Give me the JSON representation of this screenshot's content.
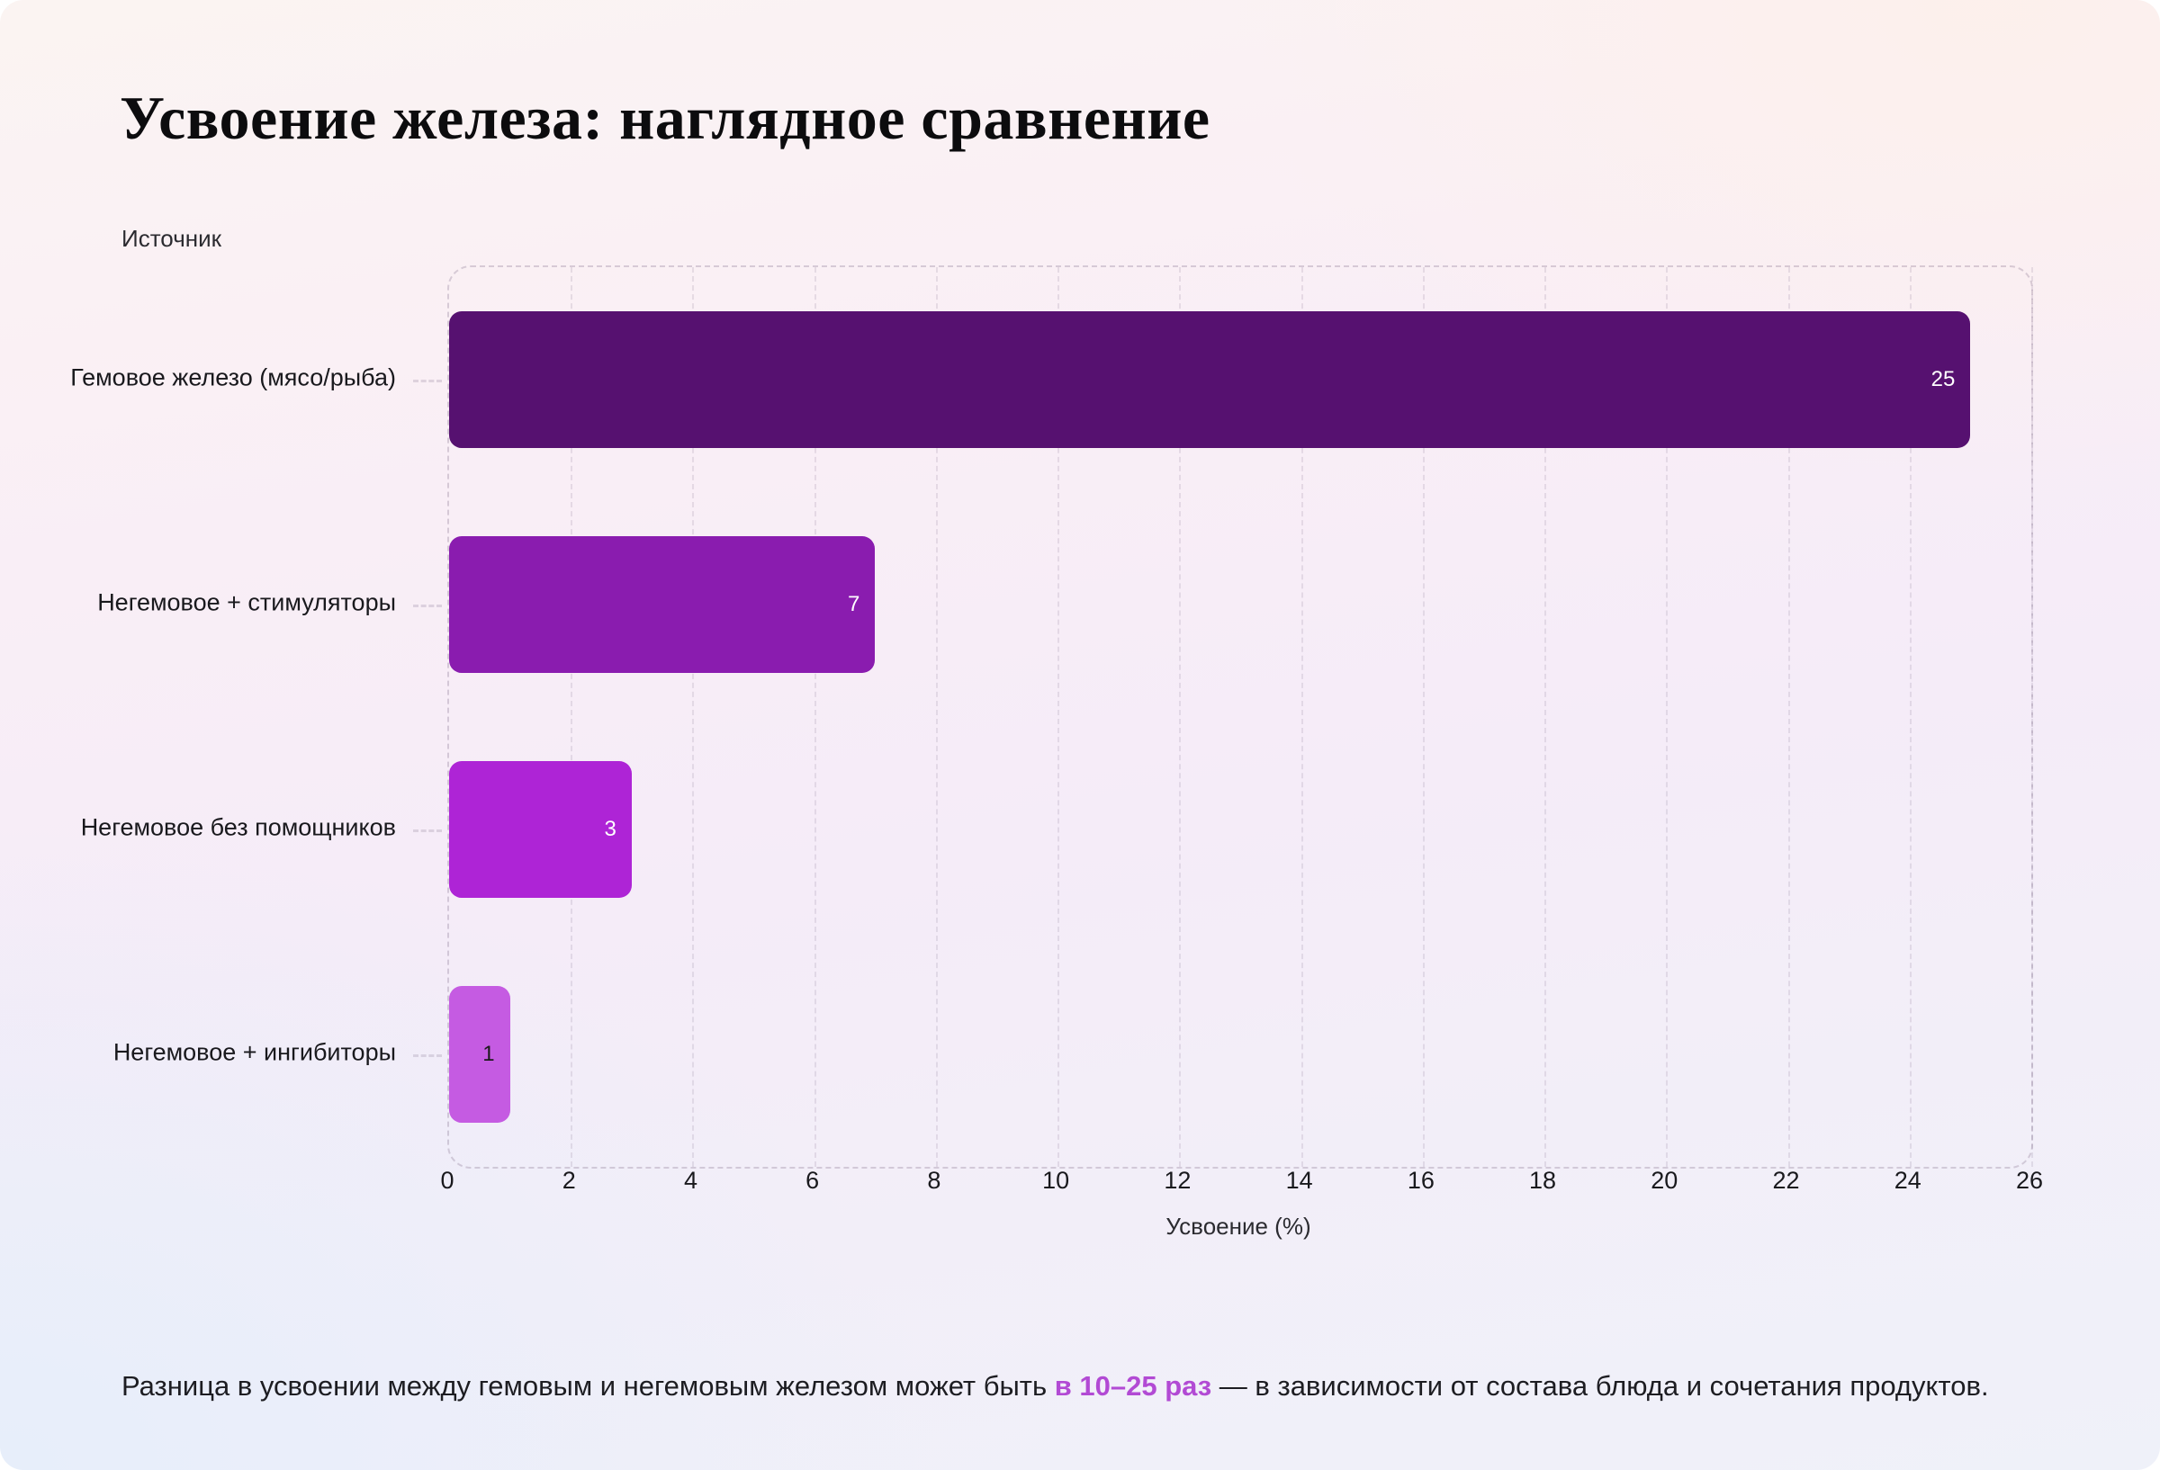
{
  "header": {
    "title": "Усвоение железа: наглядное сравнение"
  },
  "chart_data": {
    "type": "bar",
    "orientation": "horizontal",
    "title": "Усвоение железа: наглядное сравнение",
    "categories": [
      "Гемовое железо (мясо/рыба)",
      "Негемовое + стимуляторы",
      "Негемовое без помощников",
      "Негемовое + ингибиторы"
    ],
    "values": [
      25,
      7,
      3,
      1
    ],
    "value_labels": [
      "25",
      "7",
      "3",
      "1"
    ],
    "bar_colors": [
      "#561170",
      "#8a1caf",
      "#ae24d6",
      "#c55be2"
    ],
    "value_label_colors": [
      "#ffffff",
      "#ffffff",
      "#ffffff",
      "#1a1a1a"
    ],
    "xlabel": "Усвоение (%)",
    "ylabel": "Источник",
    "xlim": [
      0,
      26
    ],
    "xticks": [
      0,
      2,
      4,
      6,
      8,
      10,
      12,
      14,
      16,
      18,
      20,
      22,
      24,
      26
    ],
    "grid": "vertical dashed gridlines, dashed rounded plot frame",
    "legend": "none"
  },
  "caption": {
    "part1": "Разница в усвоении между гемовым и негемовым железом может быть ",
    "highlight": "в 10–25 раз",
    "part2": " — в зависимости от состава блюда и сочетания продуктов.",
    "highlight_color": "#b24ad4"
  }
}
